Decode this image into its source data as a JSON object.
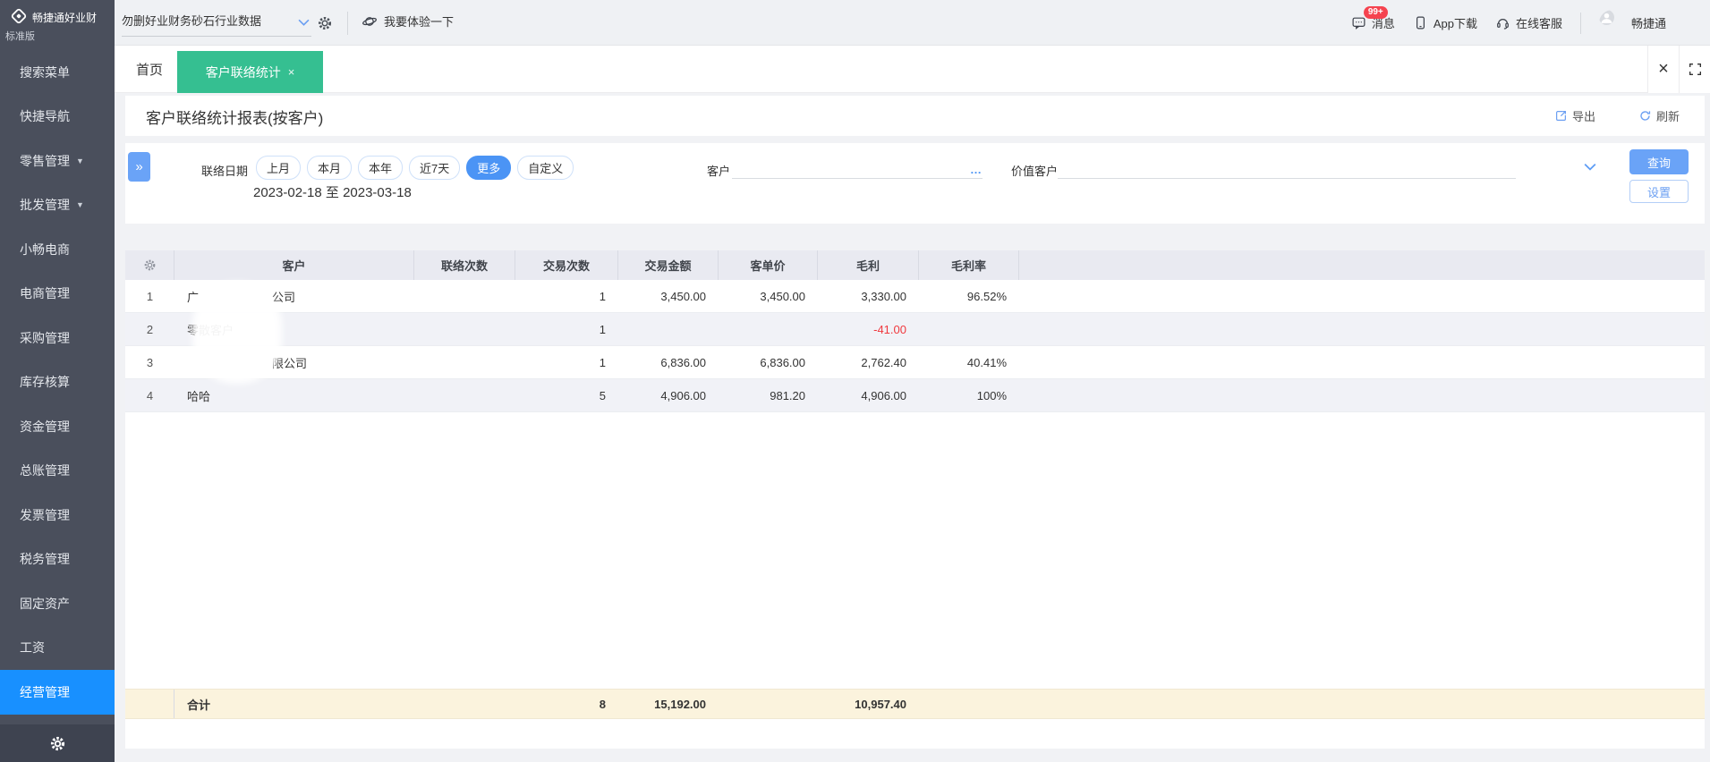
{
  "topbar": {
    "brand": "畅捷通好业财",
    "edition": "标准版",
    "org_dropdown": "勿删好业财务砂石行业数据",
    "experience": "我要体验一下",
    "messages": "消息",
    "messages_badge": "99+",
    "app_download": "App下载",
    "online_service": "在线客服",
    "username": "畅捷通"
  },
  "sidebar": {
    "items": [
      {
        "label": "搜索菜单",
        "expandable": false,
        "active": false
      },
      {
        "label": "快捷导航",
        "expandable": false,
        "active": false
      },
      {
        "label": "零售管理",
        "expandable": true,
        "active": false
      },
      {
        "label": "批发管理",
        "expandable": true,
        "active": false
      },
      {
        "label": "小畅电商",
        "expandable": false,
        "active": false
      },
      {
        "label": "电商管理",
        "expandable": false,
        "active": false
      },
      {
        "label": "采购管理",
        "expandable": false,
        "active": false
      },
      {
        "label": "库存核算",
        "expandable": false,
        "active": false
      },
      {
        "label": "资金管理",
        "expandable": false,
        "active": false
      },
      {
        "label": "总账管理",
        "expandable": false,
        "active": false
      },
      {
        "label": "发票管理",
        "expandable": false,
        "active": false
      },
      {
        "label": "税务管理",
        "expandable": false,
        "active": false
      },
      {
        "label": "固定资产",
        "expandable": false,
        "active": false
      },
      {
        "label": "工资",
        "expandable": false,
        "active": false
      },
      {
        "label": "经营管理",
        "expandable": false,
        "active": true
      }
    ]
  },
  "tabs": {
    "home": "首页",
    "active_tab": "客户联络统计",
    "close_glyph": "×"
  },
  "page": {
    "title": "客户联络统计报表(按客户)",
    "export_label": "导出",
    "refresh_label": "刷新"
  },
  "filters": {
    "date_label": "联络日期",
    "pills": [
      {
        "label": "上月",
        "active": false
      },
      {
        "label": "本月",
        "active": false
      },
      {
        "label": "本年",
        "active": false
      },
      {
        "label": "近7天",
        "active": false
      },
      {
        "label": "更多",
        "active": true
      },
      {
        "label": "自定义",
        "active": false
      }
    ],
    "date_range": "2023-02-18 至 2023-03-18",
    "customer_label": "客户",
    "customer_ellipsis": "…",
    "value_customer_label": "价值客户",
    "query_button": "查询",
    "settings_button": "设置",
    "expand_glyph": "»"
  },
  "table": {
    "headers": [
      "客户",
      "联络次数",
      "交易次数",
      "交易金额",
      "客单价",
      "毛利",
      "毛利率"
    ],
    "rows": [
      {
        "num": "1",
        "name_pre": "广",
        "name_gap": 82,
        "name_post": "公司",
        "contact": "",
        "trade": "1",
        "amount": "3,450.00",
        "price": "3,450.00",
        "profit": "3,330.00",
        "profit_negative": false,
        "rate": "96.52%"
      },
      {
        "num": "2",
        "name_pre": "零散客户",
        "name_gap": 0,
        "name_post": "",
        "contact": "",
        "trade": "1",
        "amount": "",
        "price": "",
        "profit": "-41.00",
        "profit_negative": true,
        "rate": ""
      },
      {
        "num": "3",
        "name_pre": "",
        "name_gap": 95,
        "name_post": "限公司",
        "contact": "",
        "trade": "1",
        "amount": "6,836.00",
        "price": "6,836.00",
        "profit": "2,762.40",
        "profit_negative": false,
        "rate": "40.41%"
      },
      {
        "num": "4",
        "name_pre": "哈哈",
        "name_gap": 0,
        "name_post": "",
        "contact": "",
        "trade": "5",
        "amount": "4,906.00",
        "price": "981.20",
        "profit": "4,906.00",
        "profit_negative": false,
        "rate": "100%"
      }
    ],
    "summary": {
      "label": "合计",
      "trade": "8",
      "amount": "15,192.00",
      "profit": "10,957.40"
    }
  },
  "colors": {
    "accent_blue": "#1890ff",
    "tab_green": "#35bf91",
    "negative_red": "#f0383d",
    "summary_cream": "#fbf3dd"
  }
}
